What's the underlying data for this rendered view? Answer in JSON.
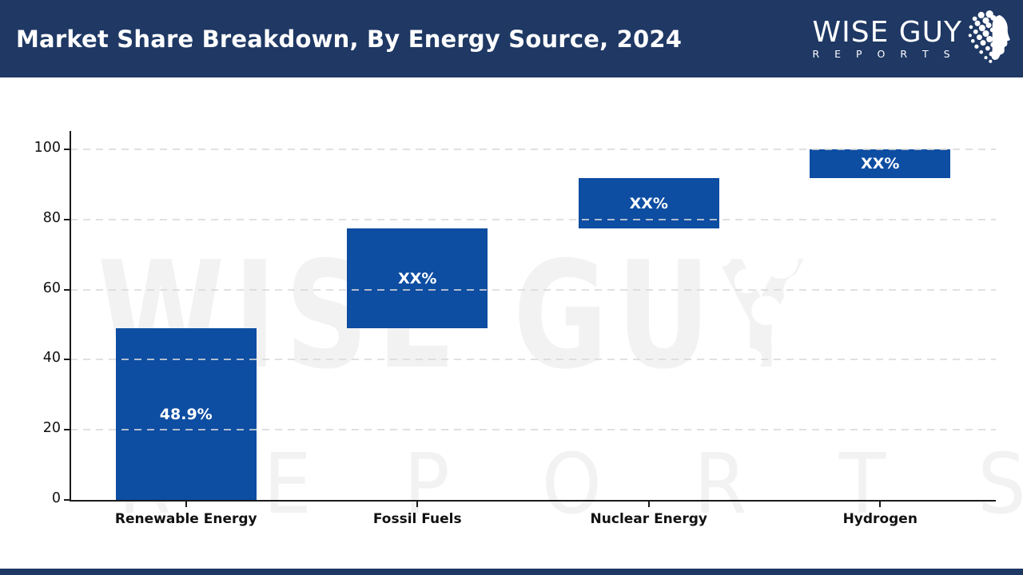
{
  "header": {
    "title": "Market Share Breakdown, By Energy Source, 2024",
    "logo": {
      "line1": "WISE GUY",
      "line2": "R E P O R T S"
    }
  },
  "watermark": {
    "line1": "WISE GUY",
    "line2": "R E P O R T S"
  },
  "footer": {},
  "colors": {
    "header_bg": "#1F3864",
    "footer_bg": "#1F3864",
    "bar_blue": "#0D4DA2",
    "bar_label": "#FFFFFF",
    "grid_gray": "#D9D9D9",
    "axis_black": "#1A1A1A",
    "watermark_gray": "#F2F2F2"
  },
  "chart_data": {
    "type": "bar",
    "subtype": "waterfall",
    "title": "Market Share Breakdown, By Energy Source, 2024",
    "xlabel": "",
    "ylabel": "",
    "categories": [
      "Renewable Energy",
      "Fossil Fuels",
      "Nuclear Energy",
      "Hydrogen"
    ],
    "segments": [
      {
        "category": "Renewable Energy",
        "start": 0,
        "end": 48.9,
        "label": "48.9%"
      },
      {
        "category": "Fossil Fuels",
        "start": 48.9,
        "end": 77.4,
        "label": "XX%"
      },
      {
        "category": "Nuclear Energy",
        "start": 77.4,
        "end": 91.8,
        "label": "XX%"
      },
      {
        "category": "Hydrogen",
        "start": 91.8,
        "end": 100,
        "label": "XX%"
      }
    ],
    "y_ticks": [
      0,
      20,
      40,
      60,
      80,
      100
    ],
    "ylim": [
      0,
      105
    ],
    "grid": "horizontal-dashed",
    "legend": "none"
  }
}
